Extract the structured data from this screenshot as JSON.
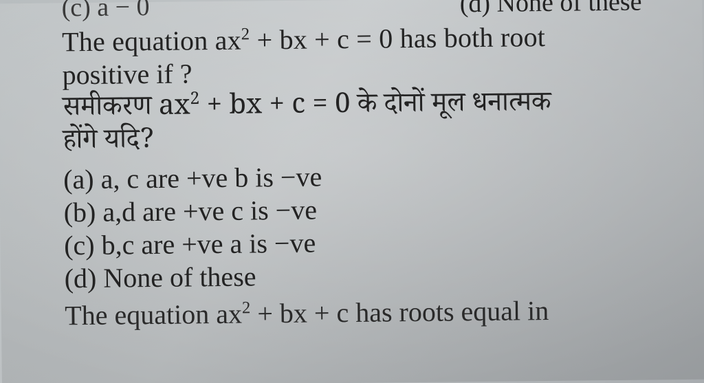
{
  "page": {
    "background_gradient": [
      "#b8bdbf",
      "#c2c6c8",
      "#a8acaf"
    ],
    "text_color": "#232323",
    "rotation_deg": -0.6,
    "base_fontsize_pt": 30
  },
  "top_clipped": {
    "left_fragment": "(c) a − 0",
    "right_fragment": "(d) None of these"
  },
  "question": {
    "english": {
      "line1_pre": "The equation ax",
      "line1_sup": "2",
      "line1_post": " + bx + c = 0 has both root",
      "line2": "positive if ?"
    },
    "hindi": {
      "line1_pre": "समीकरण ax",
      "line1_sup": "2",
      "line1_post": " + bx + c = 0 के दोनों मूल धनात्मक",
      "line2": "होंगे यदि?"
    }
  },
  "options": {
    "a": "(a) a, c are +ve b is −ve",
    "b": "(b) a,d are +ve c is −ve",
    "c": "(c) b,c are +ve a is −ve",
    "d": "(d) None of these"
  },
  "bottom_clipped": {
    "pre": "The equation ax",
    "sup": "2",
    "post": " + bx + c has roots equal in"
  }
}
